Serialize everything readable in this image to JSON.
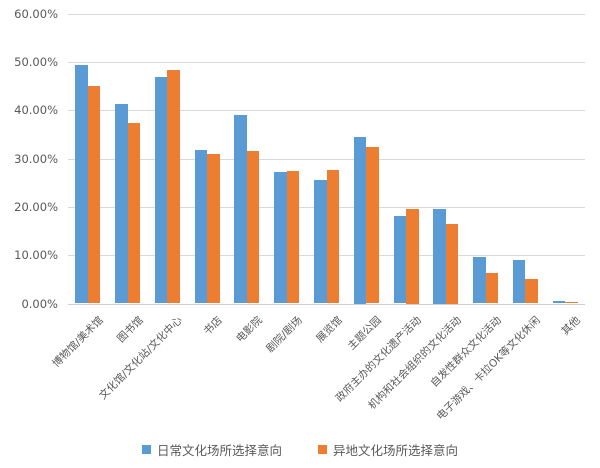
{
  "chart_data": {
    "type": "bar",
    "title": "",
    "xlabel": "",
    "ylabel": "",
    "categories": [
      "博物馆/美术馆",
      "图书馆",
      "文化馆/文化站/文化中心",
      "书店",
      "电影院",
      "剧院/剧场",
      "展览馆",
      "主题公园",
      "政府主办的文化遗产活动",
      "机构和社会组织的文化活动",
      "自发性群众文化活动",
      "电子游戏、卡拉OK等文化休闲",
      "其他"
    ],
    "series": [
      {
        "name": "日常文化场所选择意向",
        "color": "#5B9BD5",
        "values": [
          49.4,
          41.2,
          46.8,
          31.8,
          38.9,
          27.3,
          25.6,
          34.5,
          18.1,
          19.5,
          9.6,
          8.9,
          0.5
        ]
      },
      {
        "name": "异地文化场所选择意向",
        "color": "#ED7D31",
        "values": [
          45.1,
          37.3,
          48.3,
          31.0,
          31.6,
          27.4,
          27.7,
          32.3,
          19.5,
          16.5,
          6.4,
          5.1,
          0.3
        ]
      }
    ],
    "ylim": [
      0,
      60
    ],
    "ytick_step": 10,
    "ytick_labels": [
      "0.00%",
      "10.00%",
      "20.00%",
      "30.00%",
      "40.00%",
      "50.00%",
      "60.00%"
    ],
    "grid": true,
    "legend_position": "bottom"
  },
  "colors": {
    "gridline": "#d9d9d9",
    "axis_text": "#595959",
    "background": "#ffffff"
  }
}
